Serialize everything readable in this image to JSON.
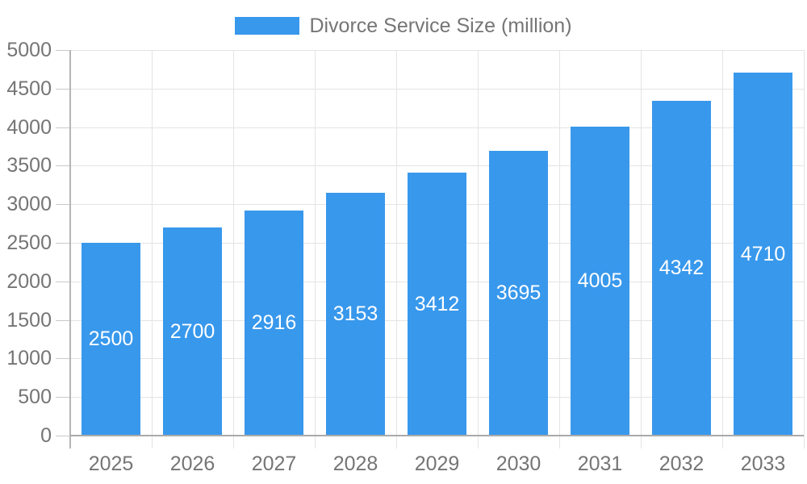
{
  "legend": {
    "position": "top",
    "items": [
      {
        "label": "Divorce Service Size (million)",
        "color": "#3898ec"
      }
    ]
  },
  "chart_data": {
    "type": "bar",
    "title": "",
    "xlabel": "",
    "ylabel": "",
    "categories": [
      "2025",
      "2026",
      "2027",
      "2028",
      "2029",
      "2030",
      "2031",
      "2032",
      "2033"
    ],
    "series": [
      {
        "name": "Divorce Service Size (million)",
        "color": "#3898ec",
        "values": [
          2500,
          2700,
          2916,
          3153,
          3412,
          3695,
          4005,
          4342,
          4710
        ]
      }
    ],
    "value_labels": [
      "2500",
      "2700",
      "2916",
      "3153",
      "3412",
      "3695",
      "4005",
      "4342",
      "4710"
    ],
    "ylim": [
      0,
      5000
    ],
    "ytick_step": 500,
    "yticks": [
      "0",
      "500",
      "1000",
      "1500",
      "2000",
      "2500",
      "3000",
      "3500",
      "4000",
      "4500",
      "5000"
    ],
    "grid": true,
    "legend_position": "top"
  },
  "colors": {
    "bar": "#3898ec",
    "grid": "#e4e4e4",
    "axis": "#aaaaaa",
    "tick": "#c9c9c9",
    "label_text": "#757575",
    "value_text": "#ffffff",
    "background": "#ffffff"
  }
}
